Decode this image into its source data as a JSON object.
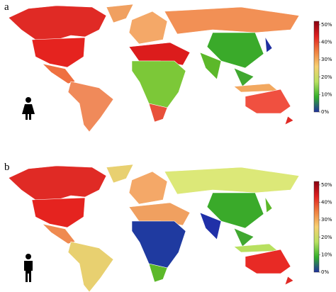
{
  "panels": [
    {
      "label": "a",
      "colorbar": {
        "range": [
          0,
          52
        ],
        "colors": [
          "#1f2fa0",
          "#33b02a",
          "#b8e060",
          "#f7d070",
          "#f08040",
          "#e02020",
          "#8a0010"
        ],
        "ticks": [
          {
            "value": 0,
            "label": "0%"
          },
          {
            "value": 10,
            "label": "10%"
          },
          {
            "value": 20,
            "label": "20%"
          },
          {
            "value": 30,
            "label": "30%"
          },
          {
            "value": 40,
            "label": "40%"
          },
          {
            "value": 50,
            "label": "50%"
          }
        ]
      }
    },
    {
      "label": "b",
      "colorbar": {
        "range": [
          0,
          52
        ],
        "colors": [
          "#1f2fa0",
          "#33b02a",
          "#b8e060",
          "#f7d070",
          "#f08040",
          "#e02020",
          "#8a0010"
        ],
        "ticks": [
          {
            "value": 0,
            "label": "0%"
          },
          {
            "value": 10,
            "label": "10%"
          },
          {
            "value": 20,
            "label": "20%"
          },
          {
            "value": 30,
            "label": "30%"
          },
          {
            "value": 40,
            "label": "40%"
          },
          {
            "value": 50,
            "label": "50%"
          }
        ]
      }
    }
  ]
}
